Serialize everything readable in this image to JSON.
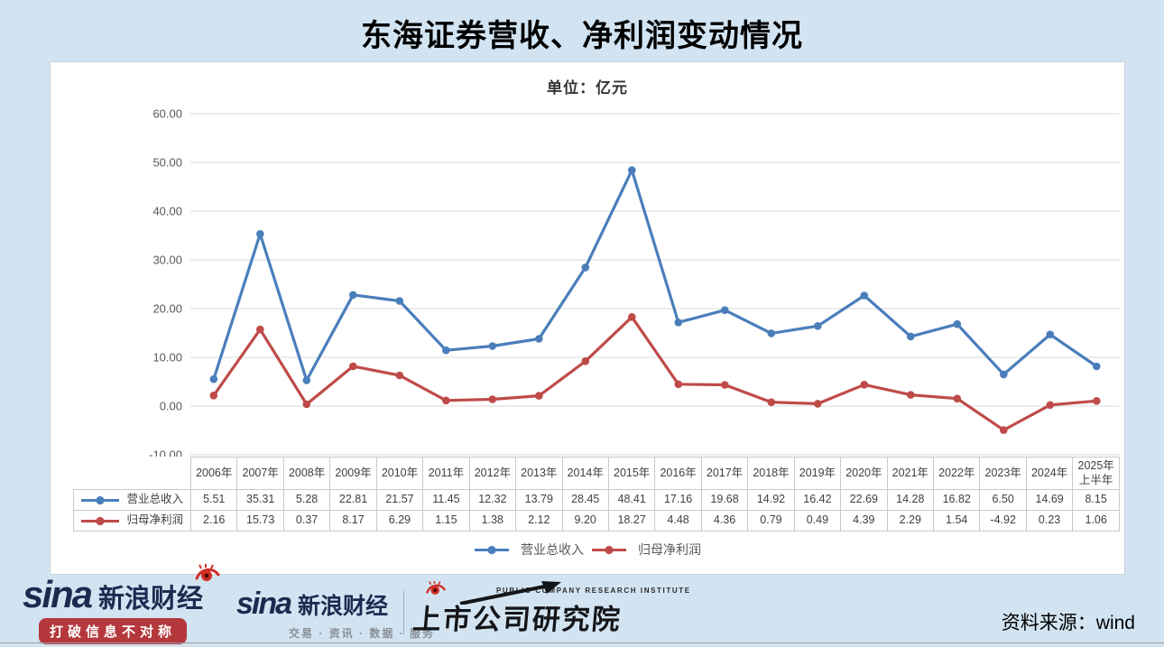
{
  "page": {
    "title": "东海证券营收、净利润变动情况",
    "source_label": "资料来源：wind"
  },
  "chart_data": {
    "type": "line",
    "title": "单位：亿元",
    "categories": [
      "2006年",
      "2007年",
      "2008年",
      "2009年",
      "2010年",
      "2011年",
      "2012年",
      "2013年",
      "2014年",
      "2015年",
      "2016年",
      "2017年",
      "2018年",
      "2019年",
      "2020年",
      "2021年",
      "2022年",
      "2023年",
      "2024年",
      "2025年上半年"
    ],
    "series": [
      {
        "name": "营业总收入",
        "color": "#4a7ebb",
        "values": [
          5.51,
          35.31,
          5.28,
          22.81,
          21.57,
          11.45,
          12.32,
          13.79,
          28.45,
          48.41,
          17.16,
          19.68,
          14.92,
          16.42,
          22.69,
          14.28,
          16.82,
          6.5,
          14.69,
          8.15
        ]
      },
      {
        "name": "归母净利润",
        "color": "#bf4b48",
        "values": [
          2.16,
          15.73,
          0.37,
          8.17,
          6.29,
          1.15,
          1.38,
          2.12,
          9.2,
          18.27,
          4.48,
          4.36,
          0.79,
          0.49,
          4.39,
          2.29,
          1.54,
          -4.92,
          0.23,
          1.06
        ]
      }
    ],
    "ylim": [
      -10,
      60
    ],
    "ytick_step": 10,
    "ytick_decimals": 2,
    "grid": true,
    "gridline_color": "#d9d9d9",
    "axis_label_color": "#595959",
    "legend_position": "bottom",
    "value_table_shown": true
  },
  "footer": {
    "sina_wordmark": "sina",
    "sina_brand": "新浪财经",
    "sina_badge": "打破信息不对称",
    "sina_services": "交易 · 资讯 · 数据 · 服务",
    "institute_en": "PUBLIC COMPANY RESEARCH INSTITUTE",
    "institute_name": "上市公司研究院"
  }
}
